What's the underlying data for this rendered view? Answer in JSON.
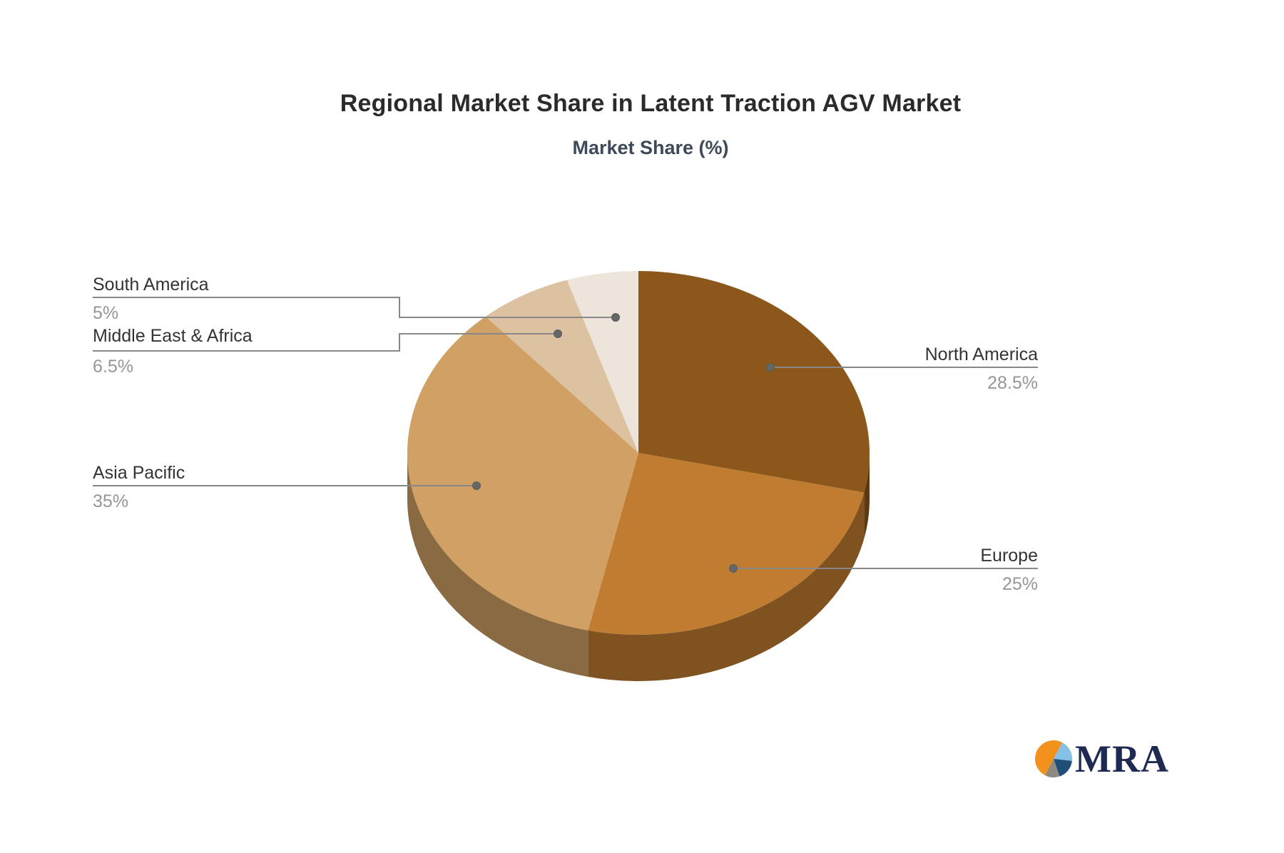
{
  "title": "Regional Market Share in Latent Traction AGV Market",
  "subtitle": "Market Share (%)",
  "chart_data": {
    "type": "pie",
    "title": "Regional Market Share in Latent Traction AGV Market",
    "subtitle": "Market Share (%)",
    "unit": "%",
    "is_3d": true,
    "legend_position": "none",
    "slices": [
      {
        "label": "North America",
        "value": 28.5,
        "pct_label": "28.5%",
        "color": "#8B571A"
      },
      {
        "label": "Europe",
        "value": 25,
        "pct_label": "25%",
        "color": "#C07C31"
      },
      {
        "label": "Asia Pacific",
        "value": 35,
        "pct_label": "35%",
        "color": "#D1A064"
      },
      {
        "label": "Middle East & Africa",
        "value": 6.5,
        "pct_label": "6.5%",
        "color": "#DCC2A1"
      },
      {
        "label": "South America",
        "value": 5,
        "pct_label": "5%",
        "color": "#EDE5DB"
      }
    ]
  },
  "colors": {
    "title": "#2B2B2B",
    "subtitle": "#3E4A59",
    "label_text": "#333333",
    "pct_text": "#969696",
    "connector_line": "#888888",
    "connector_dot": "#666666",
    "background": "#FFFFFF"
  },
  "logo": {
    "text": "MRA",
    "text_color": "#1E2A52",
    "icon_name": "mra-pie-logo-icon",
    "icon_slices": [
      {
        "color": "#85C1E5",
        "value": 19
      },
      {
        "color": "#1F4E79",
        "value": 18
      },
      {
        "color": "#8F8A7E",
        "value": 13
      },
      {
        "color": "#F2921D",
        "value": 50
      }
    ]
  }
}
